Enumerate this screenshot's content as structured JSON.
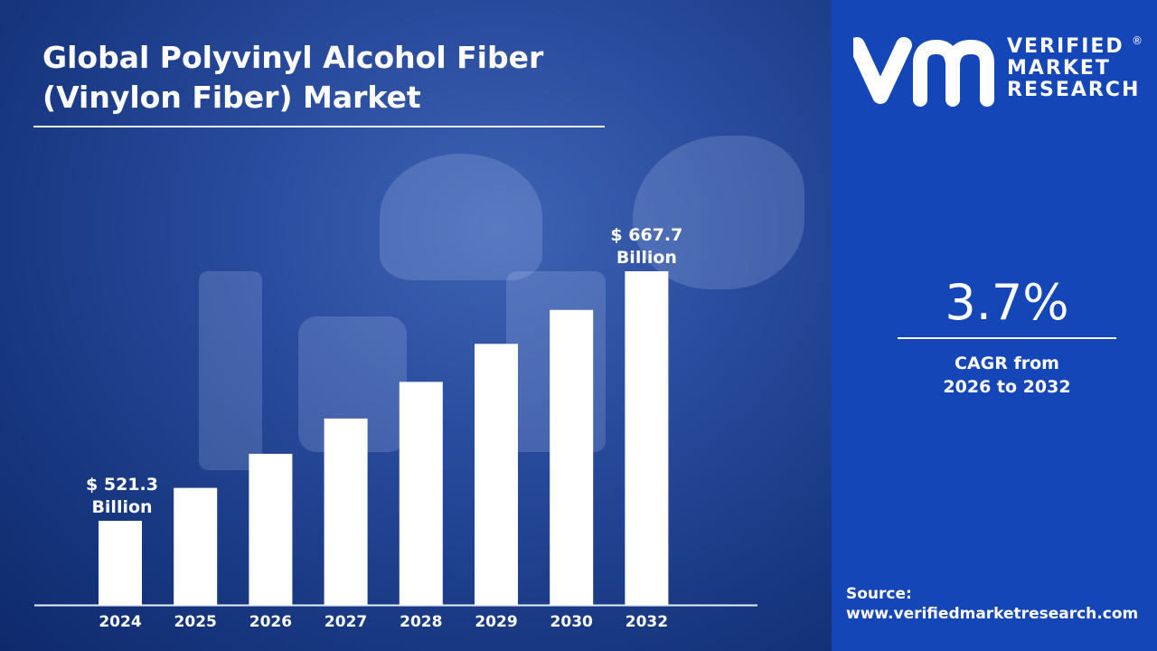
{
  "title_line1": "Global Polyvinyl Alcohol Fiber",
  "title_line2": "(Vinylon Fiber) Market",
  "brand": {
    "line1": "VERIFIED",
    "line2": "MARKET",
    "line3": "RESEARCH",
    "registered": "®"
  },
  "cagr": {
    "value": "3.7%",
    "label_line1": "CAGR from",
    "label_line2": "2026 to 2032"
  },
  "source": {
    "label": "Source:",
    "url": "www.verifiedmarketresearch.com"
  },
  "chart_data": {
    "type": "bar",
    "categories": [
      "2024",
      "2025",
      "2026",
      "2027",
      "2028",
      "2029",
      "2030",
      "2032"
    ],
    "values": [
      521.3,
      540.6,
      560.6,
      581.3,
      602.8,
      625.1,
      645.0,
      667.7
    ],
    "data_labels": [
      {
        "index": 0,
        "line1": "$ 521.3",
        "line2": "Billion"
      },
      {
        "index": 7,
        "line1": "$ 667.7",
        "line2": "Billion"
      }
    ],
    "bar_color": "#ffffff",
    "grid": false
  }
}
